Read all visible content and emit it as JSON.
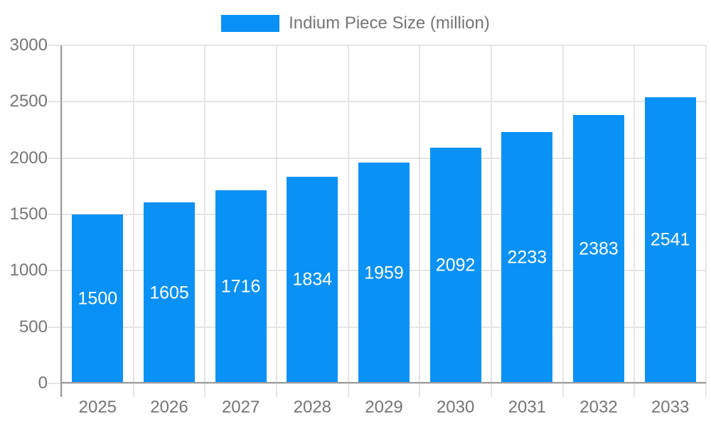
{
  "legend": {
    "label": "Indium Piece Size (million)"
  },
  "chart_data": {
    "type": "bar",
    "title": "Indium Piece Size (million)",
    "categories": [
      "2025",
      "2026",
      "2027",
      "2028",
      "2029",
      "2030",
      "2031",
      "2032",
      "2033"
    ],
    "series": [
      {
        "name": "Indium Piece Size (million)",
        "values": [
          1500,
          1605,
          1716,
          1834,
          1959,
          2092,
          2233,
          2383,
          2541
        ]
      }
    ],
    "value_labels": [
      "1500",
      "1605",
      "1716",
      "1834",
      "1959",
      "2092",
      "2233",
      "2383",
      "2541"
    ],
    "xlabel": "",
    "ylabel": "",
    "ylim": [
      0,
      3000
    ],
    "yticks": [
      0,
      500,
      1000,
      1500,
      2000,
      2500,
      3000
    ],
    "grid": true,
    "legend_position": "top",
    "colors": {
      "bar": "#0991f5",
      "grid": "#e5e5e5",
      "axis": "#999999",
      "tick_label": "#757575",
      "value_label": "#ffffff"
    }
  }
}
